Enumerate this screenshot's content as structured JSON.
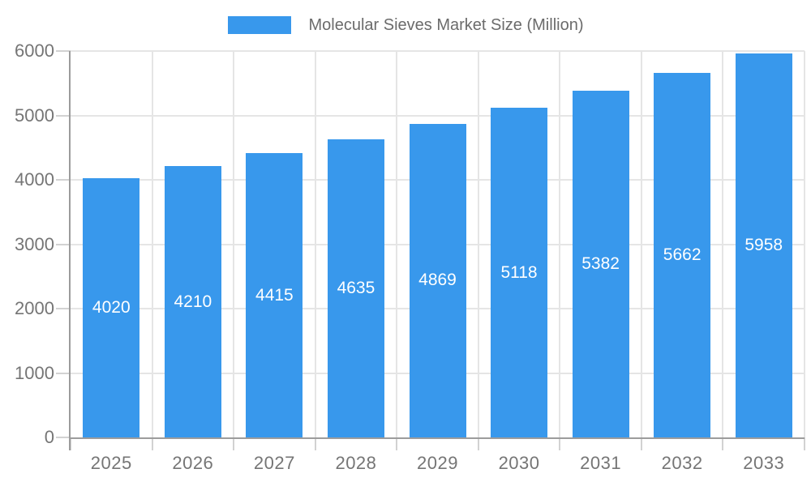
{
  "chart_data": {
    "type": "bar",
    "title": "Molecular Sieves Market Size (Million)",
    "legend": {
      "label": "Molecular Sieves Market Size (Million)",
      "position": "top"
    },
    "categories": [
      "2025",
      "2026",
      "2027",
      "2028",
      "2029",
      "2030",
      "2031",
      "2032",
      "2033"
    ],
    "series": [
      {
        "name": "Molecular Sieves Market Size (Million)",
        "values": [
          4020,
          4210,
          4415,
          4635,
          4869,
          5118,
          5382,
          5662,
          5958
        ],
        "color": "#3898ec"
      }
    ],
    "data_labels": {
      "visible": true,
      "position": "inside-center",
      "color": "#ffffff"
    },
    "xlabel": "",
    "ylabel": "",
    "ylim": [
      0,
      6000
    ],
    "yticks": [
      0,
      1000,
      2000,
      3000,
      4000,
      5000,
      6000
    ],
    "grid": true
  },
  "colors": {
    "bar": "#3898ec",
    "grid_line": "#e5e5e5",
    "axis_line": "#9c9c9c",
    "tick_mark": "#d2d2d2",
    "axis_text": "#757575",
    "legend_text": "#6b6b6b",
    "background": "#ffffff"
  }
}
